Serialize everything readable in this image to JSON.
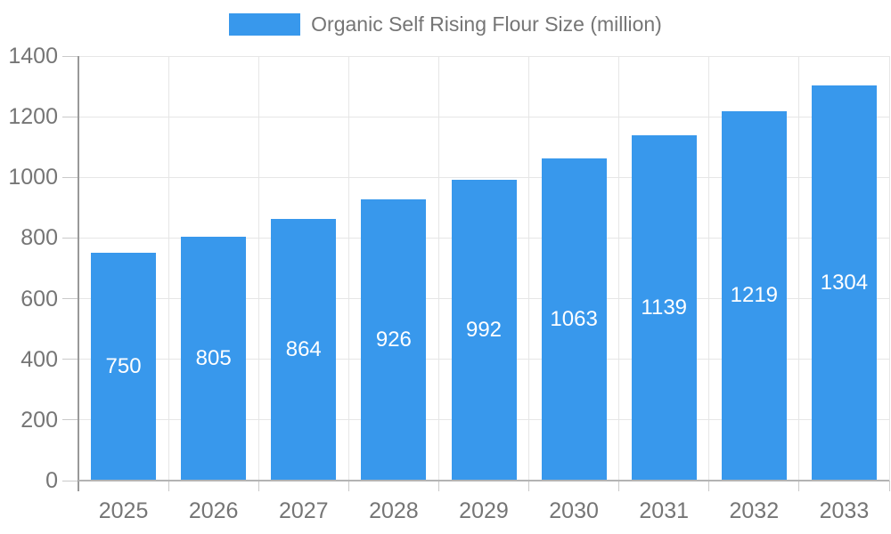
{
  "chart_data": {
    "type": "bar",
    "title": "Organic Self Rising Flour Size (million)",
    "categories": [
      "2025",
      "2026",
      "2027",
      "2028",
      "2029",
      "2030",
      "2031",
      "2032",
      "2033"
    ],
    "values": [
      750,
      805,
      864,
      926,
      992,
      1063,
      1139,
      1219,
      1304
    ],
    "series": [
      {
        "name": "Organic Self Rising Flour Size (million)",
        "values": [
          750,
          805,
          864,
          926,
          992,
          1063,
          1139,
          1219,
          1304
        ]
      }
    ],
    "xlabel": "",
    "ylabel": "",
    "ylim": [
      0,
      1400
    ],
    "y_ticks": [
      0,
      200,
      400,
      600,
      800,
      1000,
      1200,
      1400
    ],
    "grid": true,
    "legend_position": "top",
    "value_labels": "inside-center",
    "colors": {
      "bar": "#3898EC",
      "value_label": "#FFFFFF",
      "axis_text": "#757575",
      "grid_line": "#E6E6E6",
      "tick_line": "#C9C9C9",
      "y_axis_line": "#999999",
      "x_axis_line": "#B3B3B3",
      "background": "#FFFFFF"
    }
  }
}
